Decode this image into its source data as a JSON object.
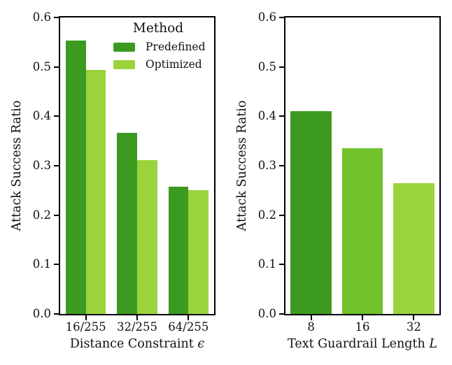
{
  "figure": {
    "background": "#ffffff",
    "text_color": "#111111",
    "spine_color": "#000000"
  },
  "chart_data": [
    {
      "type": "bar",
      "title": "",
      "ylabel": "Attack Success Ratio",
      "xlabel": "Distance Constraint",
      "xlabel_symbol": "ϵ",
      "categories": [
        "16/255",
        "32/255",
        "64/255"
      ],
      "series": [
        {
          "name": "Predefined",
          "color": "#3c9a21",
          "values": [
            0.553,
            0.367,
            0.257
          ]
        },
        {
          "name": "Optimized",
          "color": "#9bd33c",
          "values": [
            0.494,
            0.311,
            0.251
          ]
        }
      ],
      "ylim": [
        0,
        0.6
      ],
      "ytick_labels": [
        "0.0",
        "0.1",
        "0.2",
        "0.3",
        "0.4",
        "0.5",
        "0.6"
      ],
      "bar_fraction": 0.78,
      "grid": false,
      "legend": {
        "title": "Method",
        "position": "upper-right"
      }
    },
    {
      "type": "bar",
      "title": "",
      "ylabel": "Attack Success Ratio",
      "xlabel": "Text Guardrail Length",
      "xlabel_symbol": "L",
      "categories": [
        "8",
        "16",
        "32"
      ],
      "series": [
        {
          "name": "Attack Success Ratio",
          "colors": [
            "#3c9a21",
            "#71c22c",
            "#9bd33c"
          ],
          "values": [
            0.41,
            0.336,
            0.265
          ]
        }
      ],
      "ylim": [
        0,
        0.6
      ],
      "ytick_labels": [
        "0.0",
        "0.1",
        "0.2",
        "0.3",
        "0.4",
        "0.5",
        "0.6"
      ],
      "bar_fraction": 0.8,
      "grid": false,
      "legend": null
    }
  ]
}
